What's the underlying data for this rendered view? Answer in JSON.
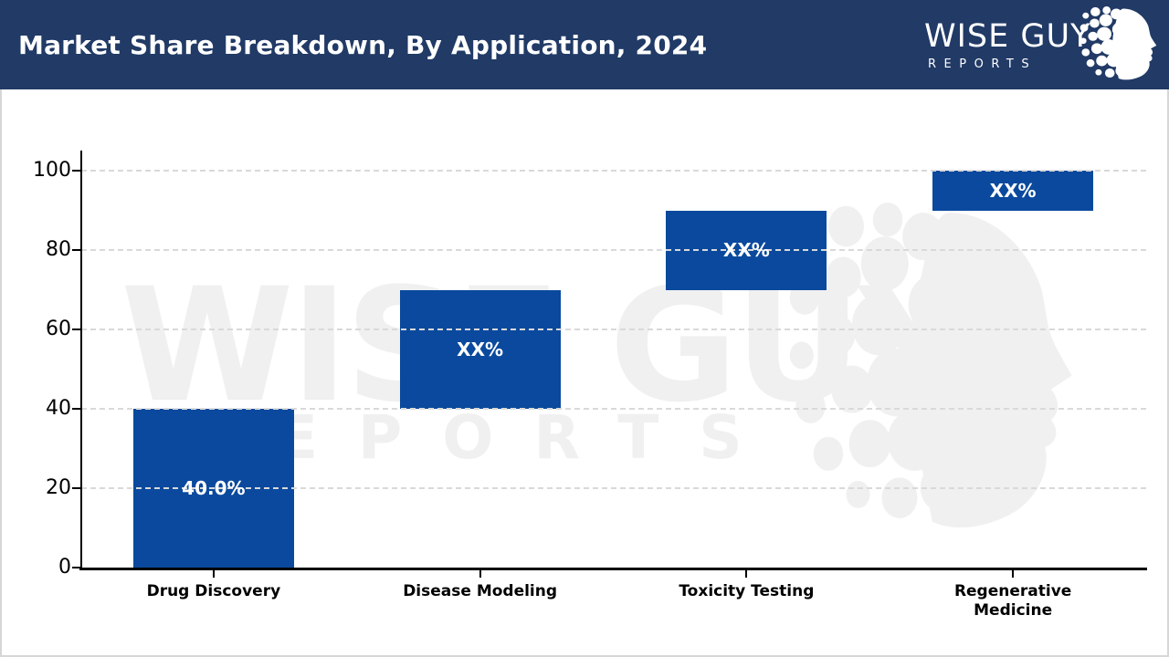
{
  "header": {
    "title": "Market Share Breakdown, By Application, 2024",
    "bg_color": "#213a66",
    "logo": {
      "wordmark": "WISE GUY",
      "subtitle": "REPORTS"
    }
  },
  "watermark": {
    "wordmark": "WISE GUY",
    "subtitle": "REPORTS"
  },
  "chart_data": {
    "type": "bar",
    "subtype": "waterfall",
    "title": "Market Share Breakdown, By Application, 2024",
    "categories": [
      "Drug Discovery",
      "Disease Modeling",
      "Toxicity Testing",
      "Regenerative\nMedicine"
    ],
    "segments": [
      {
        "category": "Drug Discovery",
        "start": 0,
        "end": 40,
        "label": "40.0%"
      },
      {
        "category": "Disease Modeling",
        "start": 40,
        "end": 70,
        "label": "XX%"
      },
      {
        "category": "Toxicity Testing",
        "start": 70,
        "end": 90,
        "label": "XX%"
      },
      {
        "category": "Regenerative Medicine",
        "start": 90,
        "end": 100,
        "label": "XX%"
      }
    ],
    "yticks": [
      0,
      20,
      40,
      60,
      80,
      100
    ],
    "ylim": [
      0,
      105
    ],
    "xlabel": "",
    "ylabel": "",
    "legend": null,
    "grid": "horizontal dashed, drawn over bars",
    "bar_color": "#0a499d",
    "value_label_color": "#ffffff",
    "axis_color": "#000000",
    "gridline_color": "#d9d9d9"
  }
}
